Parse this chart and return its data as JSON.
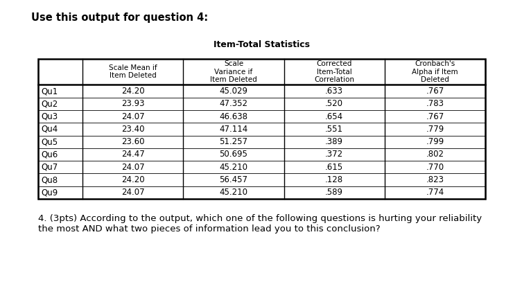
{
  "title_top": "Use this output for question 4:",
  "table_title": "Item-Total Statistics",
  "col_headers": [
    "",
    "Scale Mean if\nItem Deleted",
    "Scale\nVariance if\nItem Deleted",
    "Corrected\nItem-Total\nCorrelation",
    "Cronbach's\nAlpha if Item\nDeleted"
  ],
  "rows": [
    [
      "Qu1",
      "24.20",
      "45.029",
      ".633",
      ".767"
    ],
    [
      "Qu2",
      "23.93",
      "47.352",
      ".520",
      ".783"
    ],
    [
      "Qu3",
      "24.07",
      "46.638",
      ".654",
      ".767"
    ],
    [
      "Qu4",
      "23.40",
      "47.114",
      ".551",
      ".779"
    ],
    [
      "Qu5",
      "23.60",
      "51.257",
      ".389",
      ".799"
    ],
    [
      "Qu6",
      "24.47",
      "50.695",
      ".372",
      ".802"
    ],
    [
      "Qu7",
      "24.07",
      "45.210",
      ".615",
      ".770"
    ],
    [
      "Qu8",
      "24.20",
      "56.457",
      ".128",
      ".823"
    ],
    [
      "Qu9",
      "24.07",
      "45.210",
      ".589",
      ".774"
    ]
  ],
  "footnote": "4. (3pts) According to the output, which one of the following questions is hurting your reliability\nthe most AND what two pieces of information lead you to this conclusion?",
  "bg_color": "#ffffff",
  "text_color": "#000000",
  "title_fontsize": 10.5,
  "header_fontsize": 7.5,
  "data_fontsize": 8.5,
  "footnote_fontsize": 9.5,
  "table_title_fontsize": 9
}
